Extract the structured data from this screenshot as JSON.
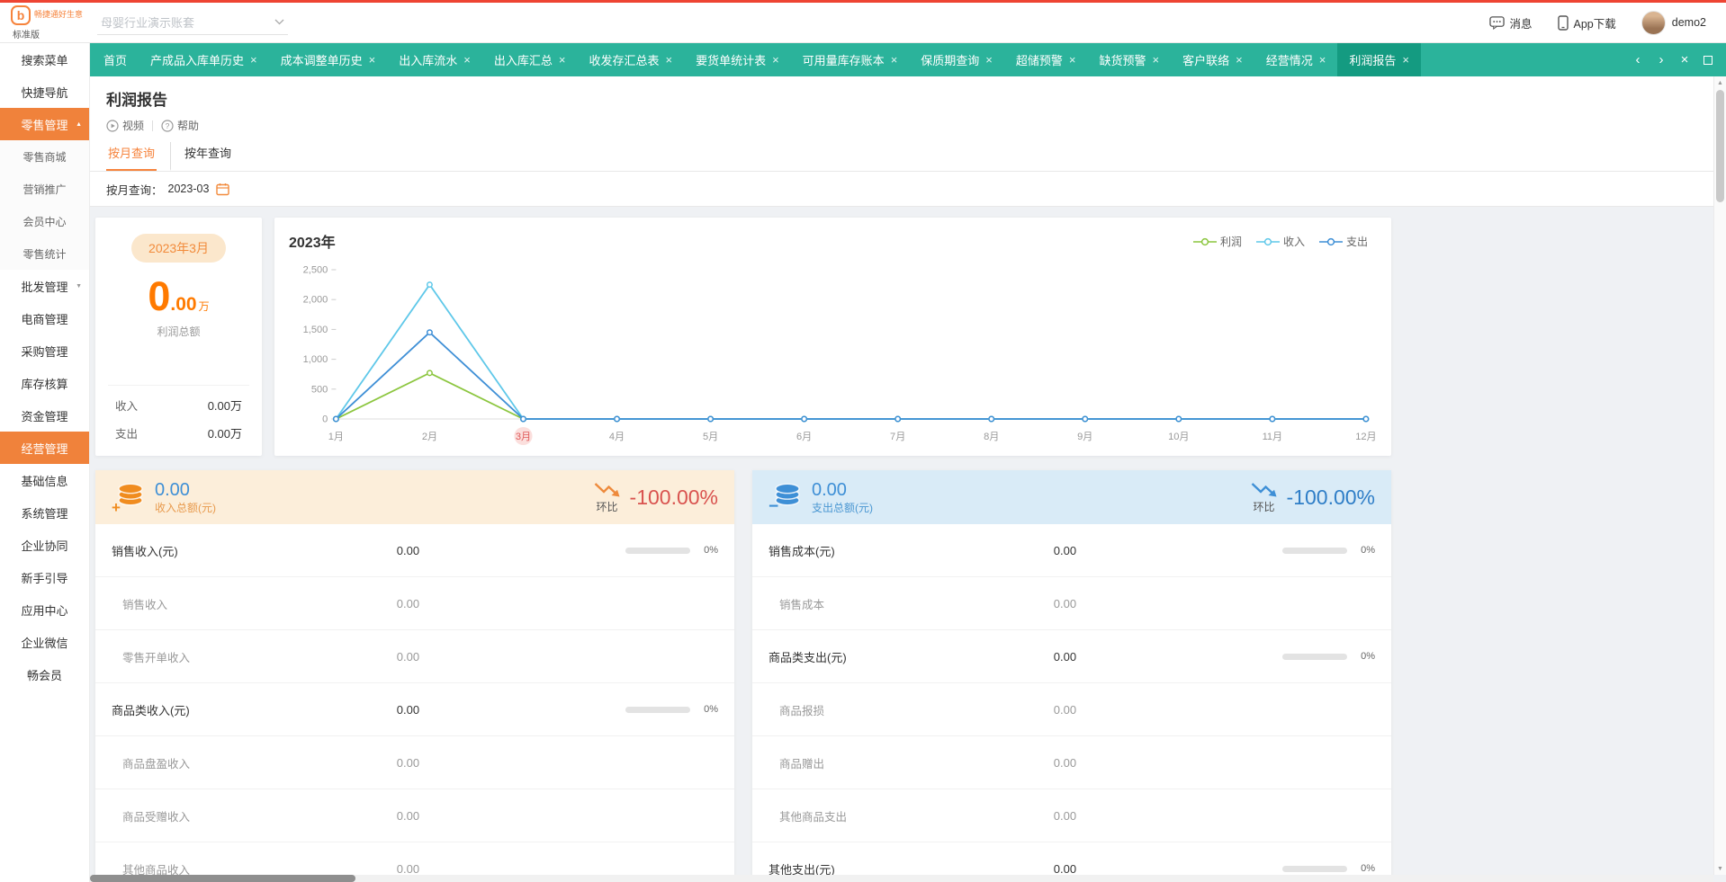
{
  "theme": {
    "accent": "#f6833c",
    "big_orange": "#ff7a00",
    "red_strip": "#ee4433",
    "teal": "#2bb39b",
    "teal_dark": "#149b81",
    "side_active": "#f0823b",
    "blue": "#3e8fd6",
    "income_hdr": "#fceeda",
    "expense_hdr": "#d9ebf7",
    "income_ratio": "#d9534f",
    "expense_ratio": "#2f7ec7"
  },
  "topbar": {
    "logo_name": "畅捷通好生意",
    "logo_edition": "标准版",
    "account_select_value": "母婴行业演示账套",
    "messages_label": "消息",
    "app_download_label": "App下载",
    "username": "demo2"
  },
  "tabbar": {
    "tabs": [
      {
        "label": "首页",
        "closable": false
      },
      {
        "label": "产成品入库单历史",
        "closable": true
      },
      {
        "label": "成本调整单历史",
        "closable": true
      },
      {
        "label": "出入库流水",
        "closable": true
      },
      {
        "label": "出入库汇总",
        "closable": true
      },
      {
        "label": "收发存汇总表",
        "closable": true
      },
      {
        "label": "要货单统计表",
        "closable": true
      },
      {
        "label": "可用量库存账本",
        "closable": true
      },
      {
        "label": "保质期查询",
        "closable": true
      },
      {
        "label": "超储预警",
        "closable": true
      },
      {
        "label": "缺货预警",
        "closable": true
      },
      {
        "label": "客户联络",
        "closable": true
      },
      {
        "label": "经营情况",
        "closable": true
      },
      {
        "label": "利润报告",
        "closable": true,
        "active": true
      }
    ]
  },
  "sidebar": {
    "items": [
      {
        "label": "搜索菜单"
      },
      {
        "label": "快捷导航"
      },
      {
        "label": "零售管理",
        "active": true,
        "caret_up": true
      },
      {
        "label": "零售商城",
        "sub": true
      },
      {
        "label": "营销推广",
        "sub": true
      },
      {
        "label": "会员中心",
        "sub": true
      },
      {
        "label": "零售统计",
        "sub": true
      },
      {
        "label": "批发管理",
        "caret_down": true
      },
      {
        "label": "电商管理"
      },
      {
        "label": "采购管理"
      },
      {
        "label": "库存核算"
      },
      {
        "label": "资金管理"
      },
      {
        "label": "经营管理",
        "active": true
      },
      {
        "label": "基础信息"
      },
      {
        "label": "系统管理"
      },
      {
        "label": "企业协同"
      },
      {
        "label": "新手引导"
      },
      {
        "label": "应用中心"
      },
      {
        "label": "企业微信"
      },
      {
        "label": "畅会员"
      }
    ]
  },
  "page": {
    "title": "利润报告",
    "video_label": "视频",
    "help_label": "帮助",
    "query_tabs": [
      {
        "label": "按月查询",
        "active": true
      },
      {
        "label": "按年查询"
      }
    ],
    "date_filter_label": "按月查询：",
    "date_value": "2023-03"
  },
  "summary_card": {
    "period": "2023年3月",
    "total_int": "0",
    "total_dec": ".00",
    "total_unit": "万",
    "total_label": "利润总额",
    "rows": [
      {
        "label": "收入",
        "value": "0.00万"
      },
      {
        "label": "支出",
        "value": "0.00万"
      }
    ]
  },
  "chart_data": {
    "type": "line",
    "title": "2023年",
    "x": [
      "1月",
      "2月",
      "3月",
      "4月",
      "5月",
      "6月",
      "7月",
      "8月",
      "9月",
      "10月",
      "11月",
      "12月"
    ],
    "ylim": [
      0,
      2500
    ],
    "yticks": [
      0,
      500,
      1000,
      1500,
      2000,
      2500
    ],
    "highlight_x": "3月",
    "grid": false,
    "legend_position": "top-right",
    "series": [
      {
        "name": "利润",
        "color": "#8cc63f",
        "values": [
          0,
          770,
          0,
          0,
          0,
          0,
          0,
          0,
          0,
          0,
          0,
          0
        ]
      },
      {
        "name": "收入",
        "color": "#5fc8e9",
        "values": [
          0,
          2250,
          0,
          0,
          0,
          0,
          0,
          0,
          0,
          0,
          0,
          0
        ]
      },
      {
        "name": "支出",
        "color": "#3e8fd6",
        "values": [
          0,
          1450,
          0,
          0,
          0,
          0,
          0,
          0,
          0,
          0,
          0,
          0
        ]
      }
    ]
  },
  "income_card": {
    "value": "0.00",
    "label": "收入总额(元)",
    "ratio_label": "环比",
    "ratio_value": "-100.00%",
    "rows": [
      {
        "label": "销售收入(元)",
        "value": "0.00",
        "percent": "0%",
        "group": true
      },
      {
        "label": "销售收入",
        "value": "0.00"
      },
      {
        "label": "零售开单收入",
        "value": "0.00"
      },
      {
        "label": "商品类收入(元)",
        "value": "0.00",
        "percent": "0%",
        "group": true
      },
      {
        "label": "商品盘盈收入",
        "value": "0.00"
      },
      {
        "label": "商品受赠收入",
        "value": "0.00"
      },
      {
        "label": "其他商品收入",
        "value": "0.00"
      }
    ]
  },
  "expense_card": {
    "value": "0.00",
    "label": "支出总额(元)",
    "ratio_label": "环比",
    "ratio_value": "-100.00%",
    "rows": [
      {
        "label": "销售成本(元)",
        "value": "0.00",
        "percent": "0%",
        "group": true
      },
      {
        "label": "销售成本",
        "value": "0.00"
      },
      {
        "label": "商品类支出(元)",
        "value": "0.00",
        "percent": "0%",
        "group": true
      },
      {
        "label": "商品报损",
        "value": "0.00"
      },
      {
        "label": "商品赠出",
        "value": "0.00"
      },
      {
        "label": "其他商品支出",
        "value": "0.00"
      },
      {
        "label": "其他支出(元)",
        "value": "0.00",
        "percent": "0%",
        "group": true
      }
    ]
  }
}
